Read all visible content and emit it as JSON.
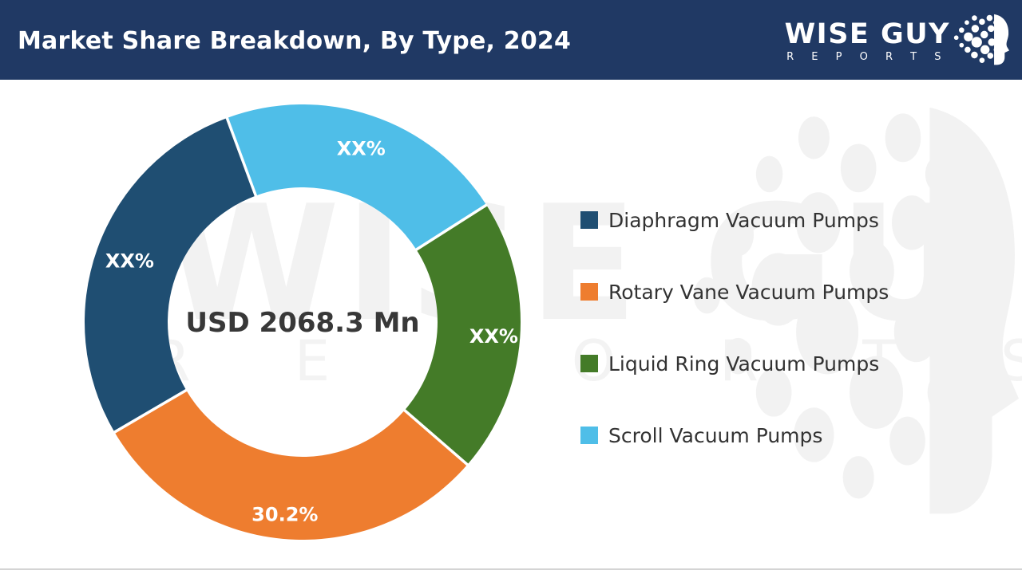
{
  "header": {
    "title": "Market Share Breakdown, By Type, 2024",
    "logo": {
      "name": "WISE GUY",
      "tagline": "R E P O R T S"
    }
  },
  "watermark": {
    "line1": "WISE GU",
    "line2": "R E P O R T S"
  },
  "colors": {
    "header_bg": "#203964",
    "navy": "#1F4E72",
    "orange": "#EE7D2F",
    "green": "#447B28",
    "light_blue": "#4FBEE8",
    "label_text": "#FFFFFF",
    "center_text": "#383838",
    "legend_text": "#333333",
    "watermark_gray": "#F2F2F2",
    "footer_line": "#D4D4D4"
  },
  "chart_data": {
    "type": "pie",
    "subtype": "donut",
    "title": "Market Share Breakdown, By Type, 2024",
    "center_label": "USD 2068.3 Mn",
    "start_angle_deg": -20.3,
    "direction": "clockwise",
    "slices": [
      {
        "name": "Scroll Vacuum Pumps",
        "value_pct": 21.6,
        "label": "XX%",
        "color": "#4FBEE8"
      },
      {
        "name": "Liquid Ring Vacuum Pumps",
        "value_pct": 20.4,
        "label": "XX%",
        "color": "#447B28"
      },
      {
        "name": "Rotary Vane Vacuum Pumps",
        "value_pct": 30.2,
        "label": "30.2%",
        "color": "#EE7D2F"
      },
      {
        "name": "Diaphragm Vacuum Pumps",
        "value_pct": 27.8,
        "label": "XX%",
        "color": "#1F4E72"
      }
    ],
    "legend": [
      {
        "label": "Diaphragm Vacuum Pumps",
        "color": "#1F4E72"
      },
      {
        "label": "Rotary Vane Vacuum Pumps",
        "color": "#EE7D2F"
      },
      {
        "label": "Liquid Ring Vacuum Pumps",
        "color": "#447B28"
      },
      {
        "label": "Scroll Vacuum Pumps",
        "color": "#4FBEE8"
      }
    ],
    "legend_position": "right"
  }
}
